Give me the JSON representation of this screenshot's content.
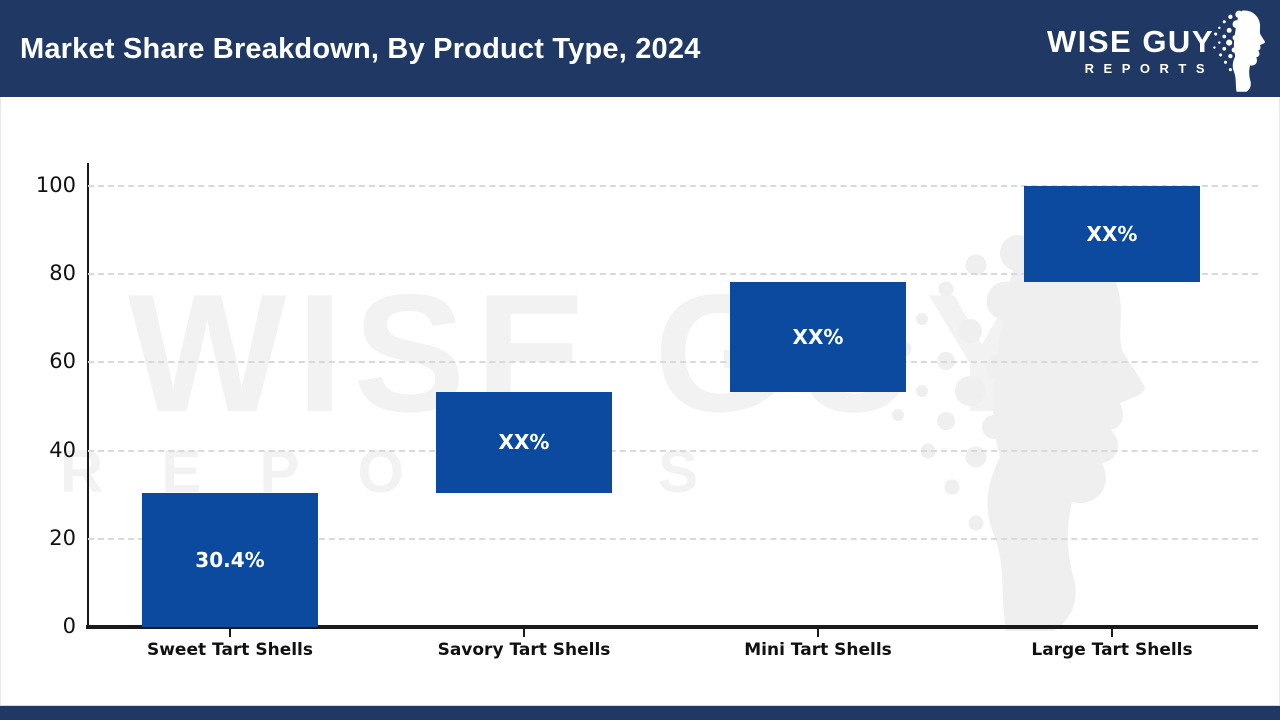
{
  "header": {
    "title": "Market Share Breakdown, By Product Type, 2024",
    "logo": {
      "line1": "WISE GUY",
      "line2": "REPORTS"
    }
  },
  "watermark": {
    "line1": "WISE GUY",
    "line2": "REPORTS"
  },
  "chart_data": {
    "type": "bar",
    "subtype": "waterfall",
    "title": "Market Share Breakdown, By Product Type, 2024",
    "categories": [
      "Sweet Tart Shells",
      "Savory Tart Shells",
      "Mini Tart Shells",
      "Large Tart Shells"
    ],
    "segments": [
      {
        "category": "Sweet Tart Shells",
        "start": 0,
        "end": 30.4,
        "label": "30.4%"
      },
      {
        "category": "Savory Tart Shells",
        "start": 30.4,
        "end": 53.3,
        "label": "XX%"
      },
      {
        "category": "Mini Tart Shells",
        "start": 53.3,
        "end": 78.2,
        "label": "XX%"
      },
      {
        "category": "Large Tart Shells",
        "start": 78.2,
        "end": 100,
        "label": "XX%"
      }
    ],
    "yticks": [
      0,
      20,
      40,
      60,
      80,
      100
    ],
    "ylim": [
      0,
      100
    ],
    "xlabel": "",
    "ylabel": "",
    "grid": "horizontal-dashed",
    "legend": "none",
    "bar_color": "#0b4a9e",
    "value_label_color": "#ffffff"
  },
  "colors": {
    "header_bg": "#203864",
    "footer_bg": "#203864",
    "axis": "#1a1a1a",
    "gridline": "#d9d9d9",
    "watermark": "#f2f2f2"
  }
}
